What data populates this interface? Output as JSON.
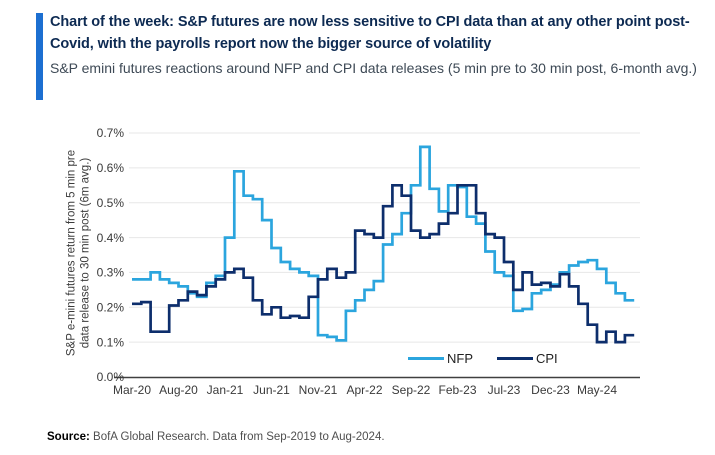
{
  "header": {
    "title": "Chart of the week: S&P futures are now less sensitive to CPI data than at any other point post-Covid, with the payrolls report now the bigger source of volatility",
    "subtitle": "S&P emini futures reactions around NFP and CPI data releases (5 min pre to 30 min post, 6-month avg.)"
  },
  "chart_data": {
    "type": "line",
    "subtype": "step",
    "ylabel_line1": "S&P e-mini futures return from 5 min pre",
    "ylabel_line2": "data release to 30 min post (6m avg.)",
    "ylim": [
      0,
      0.7
    ],
    "y_tick_labels": [
      "0.0%",
      "0.1%",
      "0.2%",
      "0.3%",
      "0.4%",
      "0.5%",
      "0.6%",
      "0.7%"
    ],
    "x_tick_labels": [
      "Mar-20",
      "Aug-20",
      "Jan-21",
      "Jun-21",
      "Nov-21",
      "Apr-22",
      "Sep-22",
      "Feb-23",
      "Jul-23",
      "Dec-23",
      "May-24"
    ],
    "x_tick_step": 5,
    "grid": "horizontal",
    "legend_position": "inside-bottom-center",
    "categories": [
      "Mar-20",
      "Apr-20",
      "May-20",
      "Jun-20",
      "Jul-20",
      "Aug-20",
      "Sep-20",
      "Oct-20",
      "Nov-20",
      "Dec-20",
      "Jan-21",
      "Feb-21",
      "Mar-21",
      "Apr-21",
      "May-21",
      "Jun-21",
      "Jul-21",
      "Aug-21",
      "Sep-21",
      "Oct-21",
      "Nov-21",
      "Dec-21",
      "Jan-22",
      "Feb-22",
      "Mar-22",
      "Apr-22",
      "May-22",
      "Jun-22",
      "Jul-22",
      "Aug-22",
      "Sep-22",
      "Oct-22",
      "Nov-22",
      "Dec-22",
      "Jan-23",
      "Feb-23",
      "Mar-23",
      "Apr-23",
      "May-23",
      "Jun-23",
      "Jul-23",
      "Aug-23",
      "Sep-23",
      "Oct-23",
      "Nov-23",
      "Dec-23",
      "Jan-24",
      "Feb-24",
      "Mar-24",
      "Apr-24",
      "May-24",
      "Jun-24",
      "Jul-24",
      "Aug-24"
    ],
    "series": [
      {
        "name": "NFP",
        "color": "#2ba5de",
        "values": [
          0.28,
          0.28,
          0.3,
          0.28,
          0.27,
          0.26,
          0.24,
          0.23,
          0.27,
          0.29,
          0.4,
          0.59,
          0.52,
          0.51,
          0.45,
          0.37,
          0.33,
          0.31,
          0.3,
          0.29,
          0.12,
          0.115,
          0.105,
          0.19,
          0.22,
          0.25,
          0.275,
          0.38,
          0.41,
          0.47,
          0.55,
          0.66,
          0.54,
          0.475,
          0.55,
          0.545,
          0.46,
          0.44,
          0.36,
          0.3,
          0.29,
          0.19,
          0.195,
          0.24,
          0.25,
          0.265,
          0.3,
          0.32,
          0.33,
          0.335,
          0.31,
          0.27,
          0.24,
          0.22
        ]
      },
      {
        "name": "CPI",
        "color": "#0d2e6c",
        "values": [
          0.21,
          0.215,
          0.13,
          0.13,
          0.205,
          0.22,
          0.245,
          0.235,
          0.26,
          0.28,
          0.3,
          0.31,
          0.285,
          0.22,
          0.18,
          0.2,
          0.17,
          0.175,
          0.17,
          0.23,
          0.28,
          0.31,
          0.285,
          0.3,
          0.42,
          0.41,
          0.4,
          0.49,
          0.55,
          0.52,
          0.42,
          0.4,
          0.41,
          0.44,
          0.47,
          0.55,
          0.55,
          0.47,
          0.41,
          0.4,
          0.33,
          0.25,
          0.3,
          0.265,
          0.27,
          0.26,
          0.295,
          0.26,
          0.21,
          0.15,
          0.1,
          0.13,
          0.1,
          0.12
        ]
      }
    ]
  },
  "source": {
    "label": "Source:",
    "text": " BofA Global Research. Data from Sep-2019 to Aug-2024."
  }
}
